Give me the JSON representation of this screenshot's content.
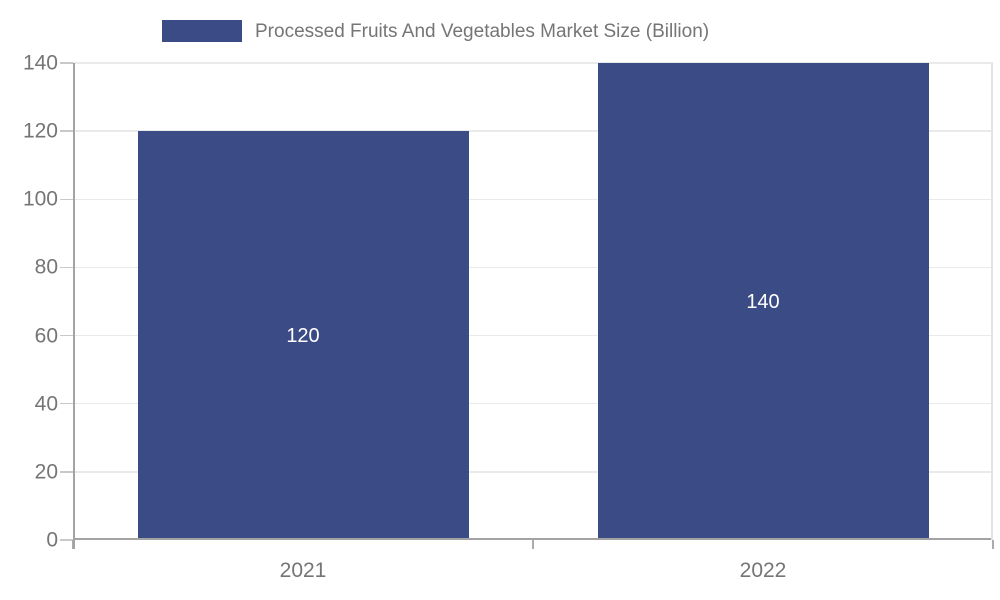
{
  "chart_data": {
    "type": "bar",
    "title": "",
    "categories": [
      "2021",
      "2022"
    ],
    "values": [
      120,
      140
    ],
    "bar_value_labels": [
      "120",
      "140"
    ],
    "legend": [
      "Processed Fruits And Vegetables Market Size (Billion)"
    ],
    "legend_position": "top-center",
    "xlabel": "",
    "ylabel": "",
    "ylim": [
      0,
      140
    ],
    "yticks": [
      0,
      20,
      40,
      60,
      80,
      100,
      120,
      140
    ],
    "grid": true
  },
  "colors": {
    "bar": "#3A4B85",
    "bar_label": "#FFFFFF",
    "axis_line": "#A3A3A3",
    "grid_line": "#EAEAEA",
    "plot_right_border": "#E3E3E3",
    "tick_text": "#757575",
    "background": "#FFFFFF"
  }
}
